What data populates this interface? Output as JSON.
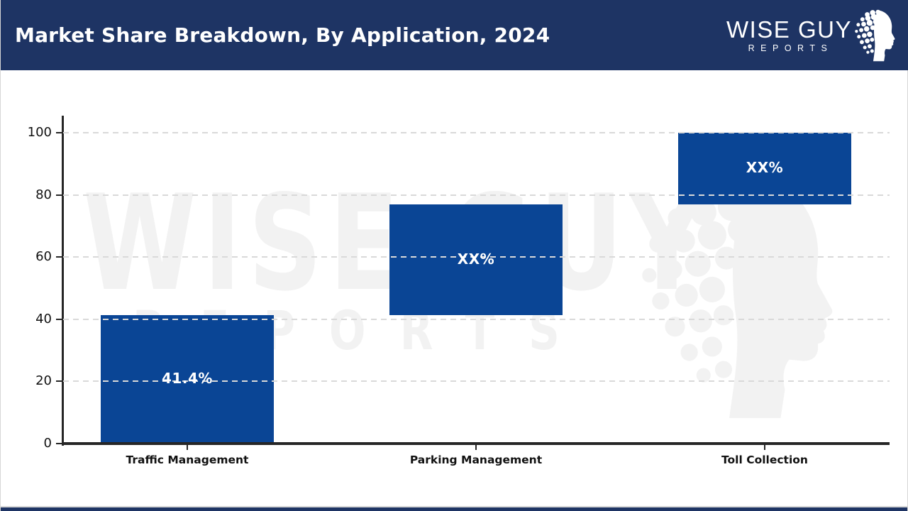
{
  "header": {
    "title": "Market Share Breakdown, By Application, 2024",
    "logo": {
      "line1": "WISE GUY",
      "line2": "REPORTS"
    }
  },
  "watermark": {
    "line1": "WISE GUY",
    "line2": "REPORTS"
  },
  "chart_data": {
    "type": "bar",
    "variant": "floating-stacked-percentage",
    "title": "Market Share Breakdown, By Application, 2024",
    "categories": [
      "Traffic Management",
      "Parking Management",
      "Toll Collection"
    ],
    "bars": [
      {
        "category": "Traffic Management",
        "start": 0,
        "end": 41.4,
        "label": "41.4%"
      },
      {
        "category": "Parking Management",
        "start": 41.4,
        "end": 77,
        "label": "XX%"
      },
      {
        "category": "Toll Collection",
        "start": 77,
        "end": 100,
        "label": "XX%"
      }
    ],
    "yticks": [
      0,
      20,
      40,
      60,
      80,
      100
    ],
    "ylim": [
      0,
      105
    ],
    "xlabel": "",
    "ylabel": "",
    "grid": "horizontal-dashed",
    "legend": "none",
    "bar_color": "#0a4595",
    "label_color": "#ffffff"
  },
  "colors": {
    "header_bg": "#1e3464",
    "footer_bg": "#1e3464",
    "axis": "#262626",
    "grid": "#d9d9d9",
    "watermark": "#f2f2f2"
  }
}
